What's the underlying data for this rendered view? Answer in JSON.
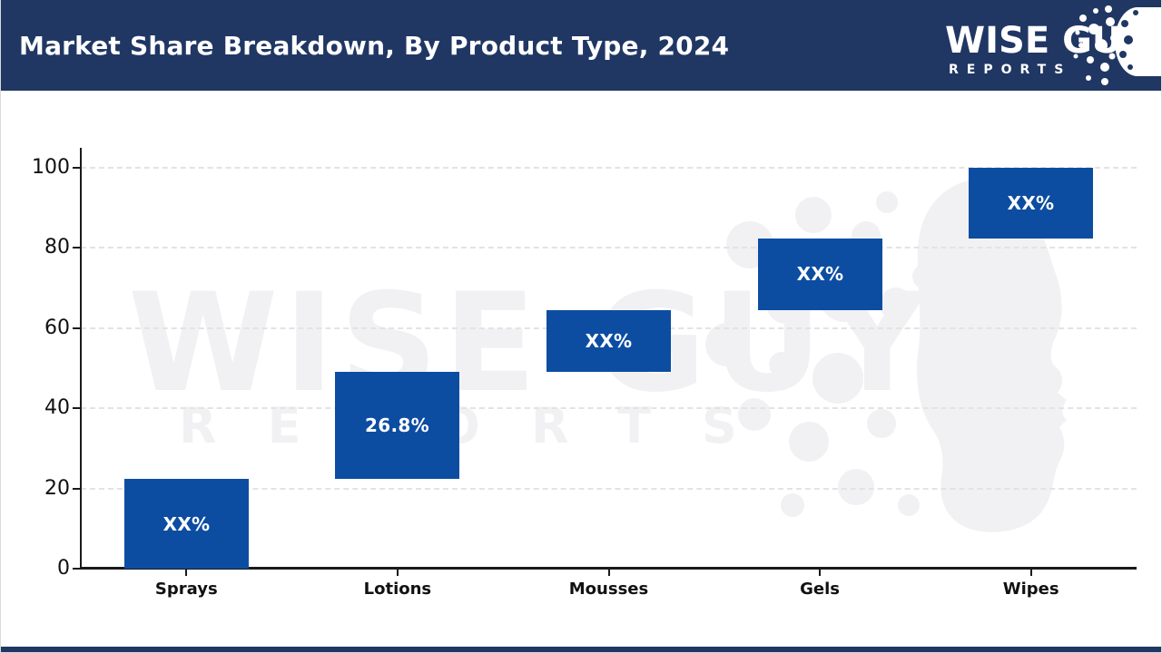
{
  "header": {
    "title": "Market Share Breakdown, By Product Type, 2024",
    "logo_line1": "WISE GUY",
    "logo_line2": "REPORTS"
  },
  "watermark": {
    "line1": "WISE GUY",
    "line2": "REPORTS"
  },
  "chart_data": {
    "type": "bar",
    "variant": "waterfall",
    "title": "Market Share Breakdown, By Product Type, 2024",
    "categories": [
      "Sprays",
      "Lotions",
      "Mousses",
      "Gels",
      "Wipes"
    ],
    "segments": [
      {
        "category": "Sprays",
        "start": 0,
        "end": 22.3,
        "label": "XX%"
      },
      {
        "category": "Lotions",
        "start": 22.3,
        "end": 49.1,
        "label": "26.8%"
      },
      {
        "category": "Mousses",
        "start": 49.1,
        "end": 64.5,
        "label": "XX%"
      },
      {
        "category": "Gels",
        "start": 64.5,
        "end": 82.4,
        "label": "XX%"
      },
      {
        "category": "Wipes",
        "start": 82.4,
        "end": 100,
        "label": "XX%"
      }
    ],
    "known_values": {
      "Lotions": 26.8
    },
    "xlabel": "",
    "ylabel": "",
    "ylim": [
      0,
      105
    ],
    "yticks": [
      0,
      20,
      40,
      60,
      80,
      100
    ],
    "grid": "horizontal-dashed",
    "legend": "none",
    "bar_color": "#0c4da2",
    "bar_label_color": "#ffffff",
    "axis_color": "#1a1a1a",
    "grid_color": "#e3e3e3"
  },
  "colors": {
    "header_bg": "#203764",
    "footer_bg": "#203764",
    "canvas_bg": "#ffffff",
    "watermark": "#f1f1f3"
  }
}
